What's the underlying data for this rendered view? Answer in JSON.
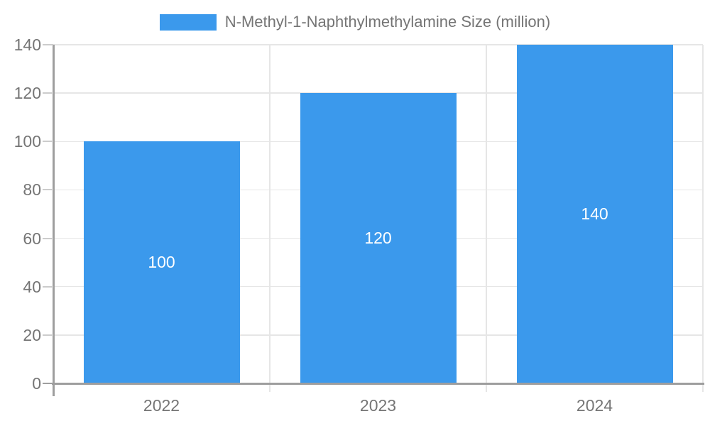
{
  "legend": {
    "label": "N-Methyl-1-Naphthylmethylamine Size (million)"
  },
  "chart_data": {
    "type": "bar",
    "title": "N-Methyl-1-Naphthylmethylamine Size (million)",
    "categories": [
      "2022",
      "2023",
      "2024"
    ],
    "series": [
      {
        "name": "N-Methyl-1-Naphthylmethylamine Size (million)",
        "values": [
          100,
          120,
          140
        ]
      }
    ],
    "bar_labels": [
      "100",
      "120",
      "140"
    ],
    "xlabel": "",
    "ylabel": "",
    "ylim": [
      0,
      140
    ],
    "yticks": [
      0,
      20,
      40,
      60,
      80,
      100,
      120,
      140
    ],
    "grid": true,
    "legend_position": "top"
  },
  "colors": {
    "bar": "#3b99ec",
    "bar_label": "#ffffff",
    "axis": "#9e9e9e",
    "tick": "#cccccc",
    "grid": "#e6e6e6",
    "text": "#757575",
    "background": "#ffffff"
  }
}
